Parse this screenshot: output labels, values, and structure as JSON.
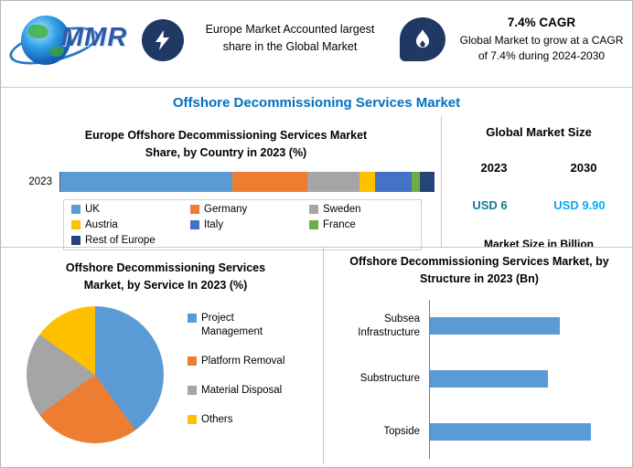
{
  "header": {
    "logo_text": "MMR",
    "europe_note": "Europe Market Accounted largest share in the Global Market",
    "cagr_title": "7.4% CAGR",
    "cagr_text": "Global Market to grow at a CAGR of 7.4% during 2024-2030"
  },
  "main_title": "Offshore Decommissioning Services Market",
  "market_size": {
    "title": "Global Market Size",
    "col_2023": "2023",
    "col_2030": "2030",
    "val_2023": "USD 6",
    "val_2030": "USD 9.90",
    "note": "Market Size in Billion"
  },
  "colors": {
    "title_blue": "#0070C0",
    "badge_navy": "#1F3864",
    "value_2023_teal": "#0E7C93",
    "value_2030_cyan": "#00B0F0",
    "primary_bar_blue": "#5B9BD5"
  },
  "chart_data": [
    {
      "type": "bar",
      "subtype": "stacked-horizontal",
      "title": "Europe Offshore Decommissioning Services Market Share, by Country in 2023 (%)",
      "categories": [
        "2023"
      ],
      "unit": "%",
      "series": [
        {
          "name": "UK",
          "color": "#5B9BD5",
          "values": [
            46
          ]
        },
        {
          "name": "Germany",
          "color": "#ED7D31",
          "values": [
            20
          ]
        },
        {
          "name": "Sweden",
          "color": "#A5A5A5",
          "values": [
            14
          ]
        },
        {
          "name": "Austria",
          "color": "#FFC000",
          "values": [
            4
          ]
        },
        {
          "name": "Italy",
          "color": "#4472C4",
          "values": [
            10
          ]
        },
        {
          "name": "France",
          "color": "#70AD47",
          "values": [
            2
          ]
        },
        {
          "name": "Rest of Europe",
          "color": "#264478",
          "values": [
            4
          ]
        }
      ],
      "legend_position": "bottom"
    },
    {
      "type": "pie",
      "title": "Offshore Decommissioning Services Market, by Service In 2023 (%)",
      "labels": [
        "Project Management",
        "Platform Removal",
        "Material Disposal",
        "Others"
      ],
      "values": [
        40,
        25,
        20,
        15
      ],
      "colors": [
        "#5B9BD5",
        "#ED7D31",
        "#A5A5A5",
        "#FFC000"
      ],
      "legend_position": "right"
    },
    {
      "type": "bar",
      "subtype": "horizontal",
      "title": "Offshore Decommissioning Services Market, by Structure in 2023 (Bn)",
      "categories": [
        "Subsea Infrastructure",
        "Substructure",
        "Topside"
      ],
      "values": [
        2.1,
        1.9,
        2.6
      ],
      "xmax": 3.2,
      "color": "#5B9BD5",
      "unit": "Bn"
    }
  ]
}
